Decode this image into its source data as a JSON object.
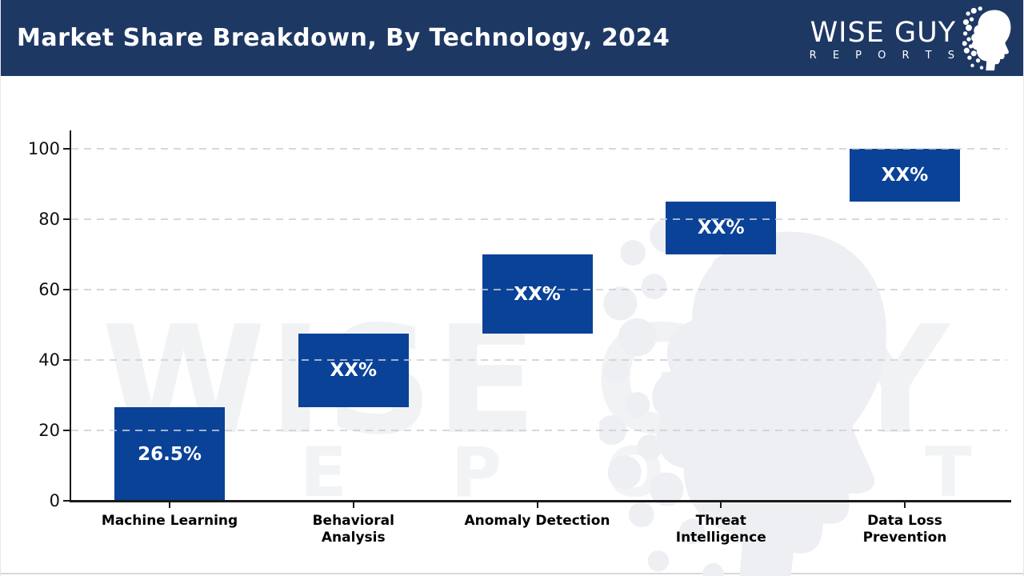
{
  "header": {
    "bg_color": "#1e3864",
    "title": "Market Share Breakdown, By Technology, 2024",
    "title_color": "#ffffff",
    "logo": {
      "line1": "WISE GUY",
      "line2": "R E P O R T S"
    }
  },
  "watermark": {
    "line1": "WISE GUY",
    "line2": "R E P O R T S"
  },
  "chart_data": {
    "type": "bar",
    "subtype": "waterfall",
    "title": "Market Share Breakdown, By Technology, 2024",
    "categories": [
      "Machine Learning",
      "Behavioral Analysis",
      "Anomaly Detection",
      "Threat Intelligence",
      "Data Loss Prevention"
    ],
    "category_label_lines": [
      [
        "Machine Learning"
      ],
      [
        "Behavioral",
        "Analysis"
      ],
      [
        "Anomaly Detection"
      ],
      [
        "Threat",
        "Intelligence"
      ],
      [
        "Data Loss",
        "Prevention"
      ]
    ],
    "segments": [
      {
        "category": "Machine Learning",
        "base": 0,
        "top": 26.5,
        "label": "26.5%"
      },
      {
        "category": "Behavioral Analysis",
        "base": 26.5,
        "top": 47.4,
        "label": "XX%"
      },
      {
        "category": "Anomaly Detection",
        "base": 47.4,
        "top": 69.9,
        "label": "XX%"
      },
      {
        "category": "Threat Intelligence",
        "base": 69.9,
        "top": 84.9,
        "label": "XX%"
      },
      {
        "category": "Data Loss Prevention",
        "base": 84.9,
        "top": 100,
        "label": "XX%"
      }
    ],
    "yticks": [
      0,
      20,
      40,
      60,
      80,
      100
    ],
    "ylim": [
      0,
      105
    ],
    "xlabel": "",
    "ylabel": "",
    "grid": "horizontal-dashed",
    "legend": "none",
    "bar_color": "#0a4298",
    "bar_label_color": "#ffffff",
    "axis_color": "#1a1a1a",
    "gridline_color": "#d9d9d9"
  }
}
